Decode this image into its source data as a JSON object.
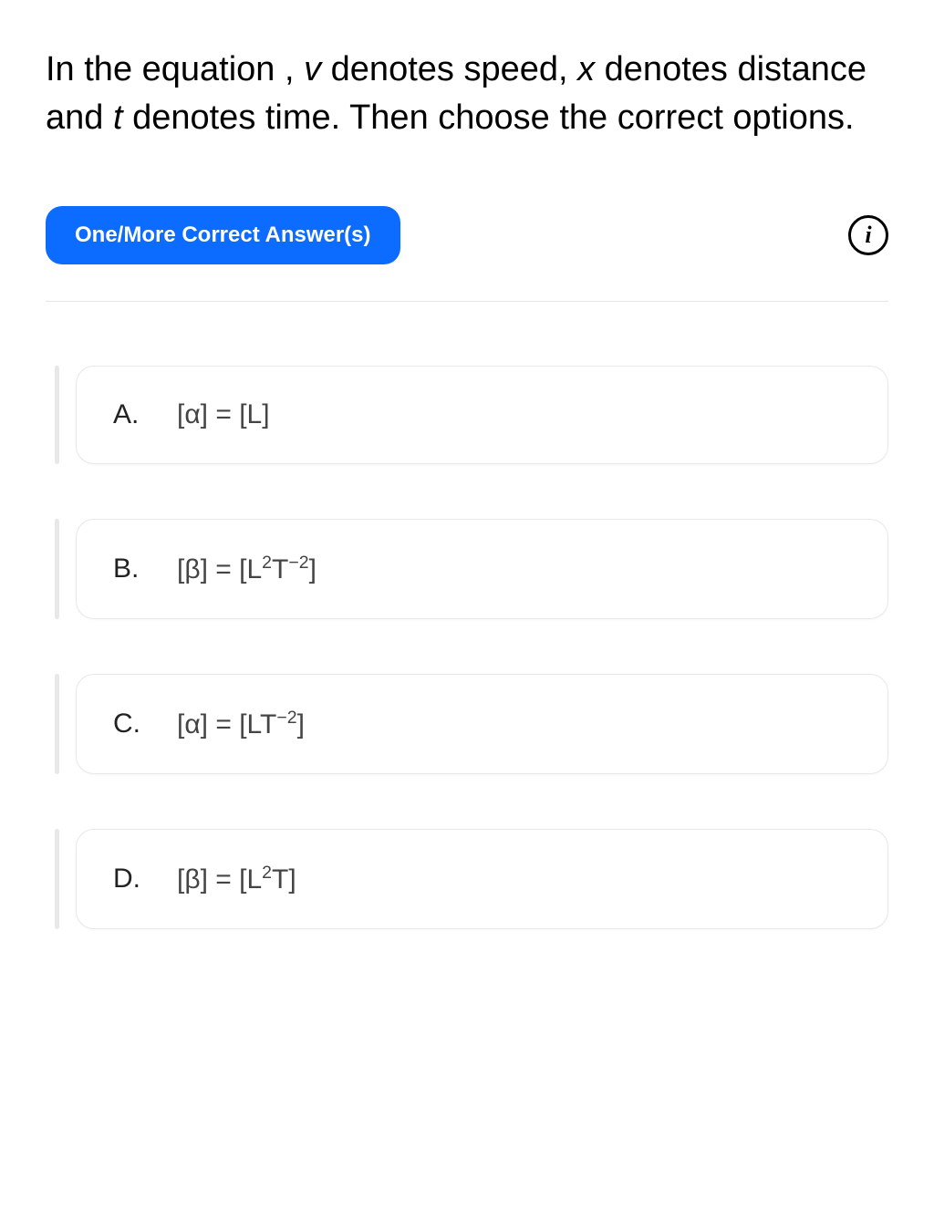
{
  "question": {
    "part1": "In the equation , ",
    "var1": "v",
    "part2": " denotes speed, ",
    "var2": "x",
    "part3": " denotes distance and ",
    "var3": "t",
    "part4": " denotes time. Then choose the correct options."
  },
  "badge": {
    "label": "One/More Correct Answer(s)",
    "background_color": "#0b6cff",
    "text_color": "#ffffff"
  },
  "info_icon": {
    "glyph": "i",
    "border_color": "#000000"
  },
  "options": [
    {
      "letter": "A.",
      "eq_html": "[α] = [L]"
    },
    {
      "letter": "B.",
      "eq_html": "[β] = [L<sup>2</sup>T<sup>−2</sup>]"
    },
    {
      "letter": "C.",
      "eq_html": "[α] = [LT<sup>−2</sup>]"
    },
    {
      "letter": "D.",
      "eq_html": "[β] = [L<sup>2</sup>T]"
    }
  ],
  "styling": {
    "body_bg": "#ffffff",
    "question_fontsize": 38,
    "option_fontsize": 30,
    "option_border_color": "#e8e8e8",
    "option_bar_color": "#e8e8e8",
    "divider_color": "#e5e5e5"
  }
}
